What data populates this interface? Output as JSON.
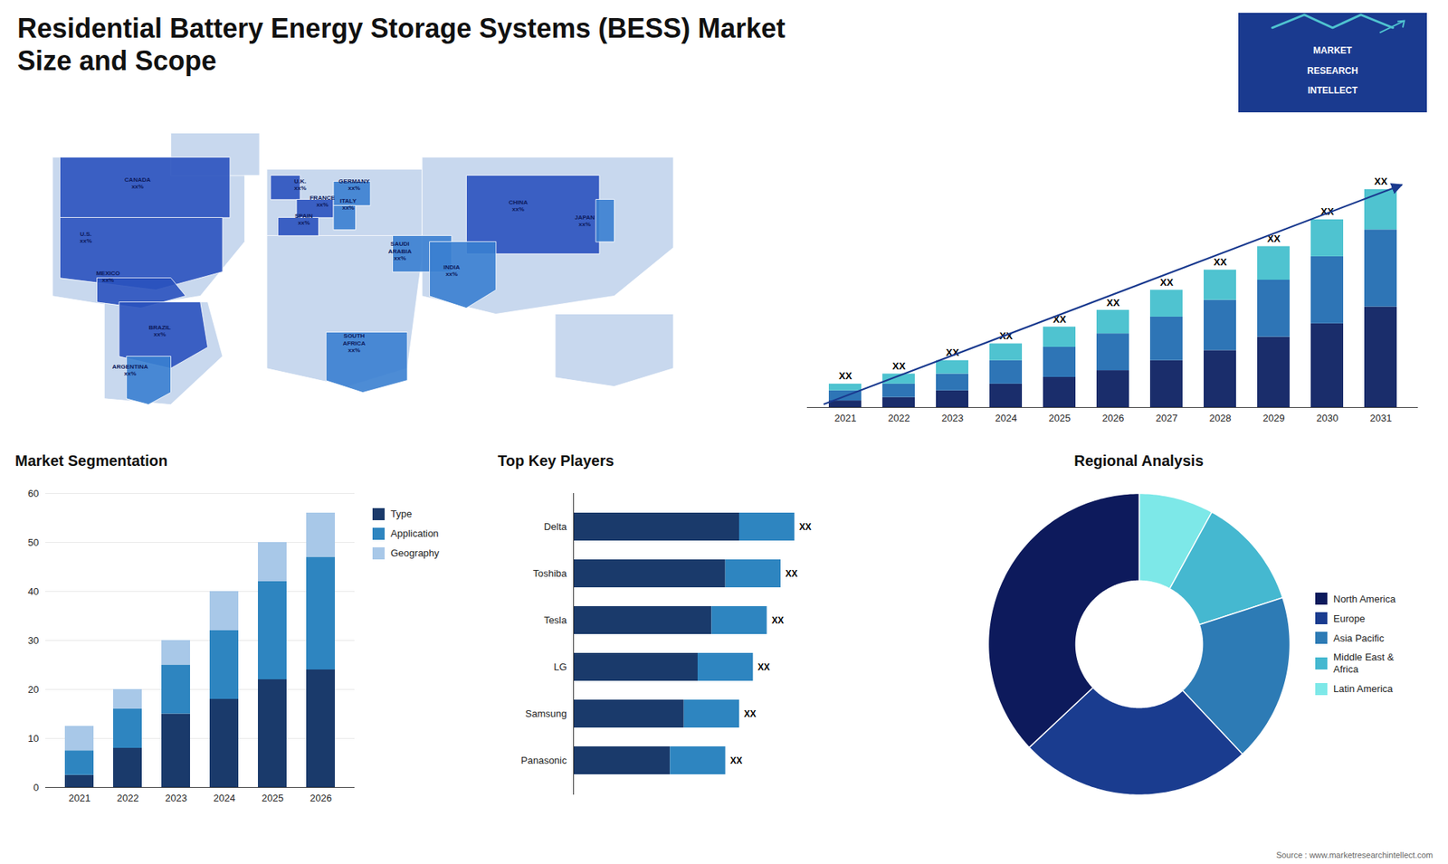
{
  "title": "Residential Battery Energy Storage Systems (BESS) Market\nSize and Scope",
  "annotations": [
    "MARKET",
    "RESEARCH",
    "INTELLECT",
    "Source : www.marketresearchintellect.com"
  ],
  "chart_data": [
    {
      "type": "map",
      "annotations": [
        "CANADA\nxx%",
        "U.S.\nxx%",
        "MEXICO\nxx%",
        "BRAZIL\nxx%",
        "ARGENTINA\nxx%",
        "U.K.\nxx%",
        "FRANCE\nxx%",
        "SPAIN\nxx%",
        "GERMANY\nxx%",
        "ITALY\nxx%",
        "SAUDI\nARABIA\nxx%",
        "SOUTH\nAFRICA\nxx%",
        "CHINA\nxx%",
        "INDIA\nxx%",
        "JAPAN\nxx%"
      ],
      "colors": [
        "#c8d8ee",
        "#c8d8ee",
        "#c8d8ee",
        "#c8d8ee",
        "#c8d8ee",
        "#c8d8ee",
        "#c8d8ee",
        "#2a52be",
        "#2a52be",
        "#2a52be",
        "#2a52be",
        "#3a7fd0",
        "#2a52be",
        "#2a52be",
        "#2a52be",
        "#3a7fd0",
        "#3a7fd0",
        "#3a7fd0",
        "#3a7fd0",
        "#2a52be",
        "#3a7fd0",
        "#3a7fd0"
      ]
    },
    {
      "type": "bar",
      "stacked": true,
      "categories": [
        "2021",
        "2022",
        "2023",
        "2024",
        "2025",
        "2026",
        "2027",
        "2028",
        "2029",
        "2030",
        "2031"
      ],
      "series": [
        {
          "color": "#1a2d6b",
          "values": [
            2,
            3,
            5,
            7,
            9,
            11,
            14,
            17,
            21,
            25,
            30
          ]
        },
        {
          "color": "#2e75b6",
          "values": [
            3,
            4,
            5,
            7,
            9,
            11,
            13,
            15,
            17,
            20,
            23
          ]
        },
        {
          "color": "#4fc3d0",
          "values": [
            2,
            3,
            4,
            5,
            6,
            7,
            8,
            9,
            10,
            11,
            12
          ],
          "value_labels": [
            "XX",
            "XX",
            "XX",
            "XX",
            "XX",
            "XX",
            "XX",
            "XX",
            "XX",
            "XX",
            "XX"
          ]
        }
      ],
      "ylim": [
        0,
        83.2
      ],
      "tick_labels": "x",
      "grid": false
    },
    {
      "type": "bar",
      "title": "Market Segmentation",
      "stacked": true,
      "categories": [
        "2021",
        "2022",
        "2023",
        "2024",
        "2025",
        "2026"
      ],
      "series": [
        {
          "name": "Type",
          "color": "#1a3a6b",
          "values": [
            2.5,
            8,
            15,
            18,
            22,
            24
          ]
        },
        {
          "name": "Application",
          "color": "#2e85c0",
          "values": [
            5,
            8,
            10,
            14,
            20,
            23
          ]
        },
        {
          "name": "Geography",
          "color": "#a8c8e8",
          "values": [
            5,
            4,
            5,
            8,
            8,
            9
          ]
        }
      ],
      "ylim": [
        0,
        60
      ],
      "yticks": [
        0,
        10,
        20,
        30,
        40,
        50,
        60
      ],
      "grid": true,
      "legend": "right"
    },
    {
      "type": "bar",
      "title": "Top Key Players",
      "orientation": "horizontal",
      "stacked": true,
      "categories": [
        "Delta",
        "Toshiba",
        "Tesla",
        "LG",
        "Samsung",
        "Panasonic"
      ],
      "series": [
        {
          "color": "#1a3a6b",
          "values": [
            6.0,
            5.5,
            5.0,
            4.5,
            4.0,
            3.5
          ]
        },
        {
          "color": "#2e85c0",
          "values": [
            2.0,
            2.0,
            2.0,
            2.0,
            2.0,
            2.0
          ],
          "value_labels": [
            "XX",
            "XX",
            "XX",
            "XX",
            "XX",
            "XX"
          ]
        }
      ],
      "xlim": [
        0,
        12
      ],
      "tick_labels": "y",
      "grid": false
    },
    {
      "type": "pie",
      "title": "Regional Analysis",
      "categories": [
        "Latin America",
        "Middle East &\nAfrica",
        "Asia Pacific",
        "Europe",
        "North America"
      ],
      "values": [
        8,
        12,
        18,
        25,
        37
      ],
      "colors": [
        "#7de8e8",
        "#45b8d0",
        "#2d7bb5",
        "#1a3c8f",
        "#0d1a5c"
      ],
      "legend": "right"
    }
  ]
}
